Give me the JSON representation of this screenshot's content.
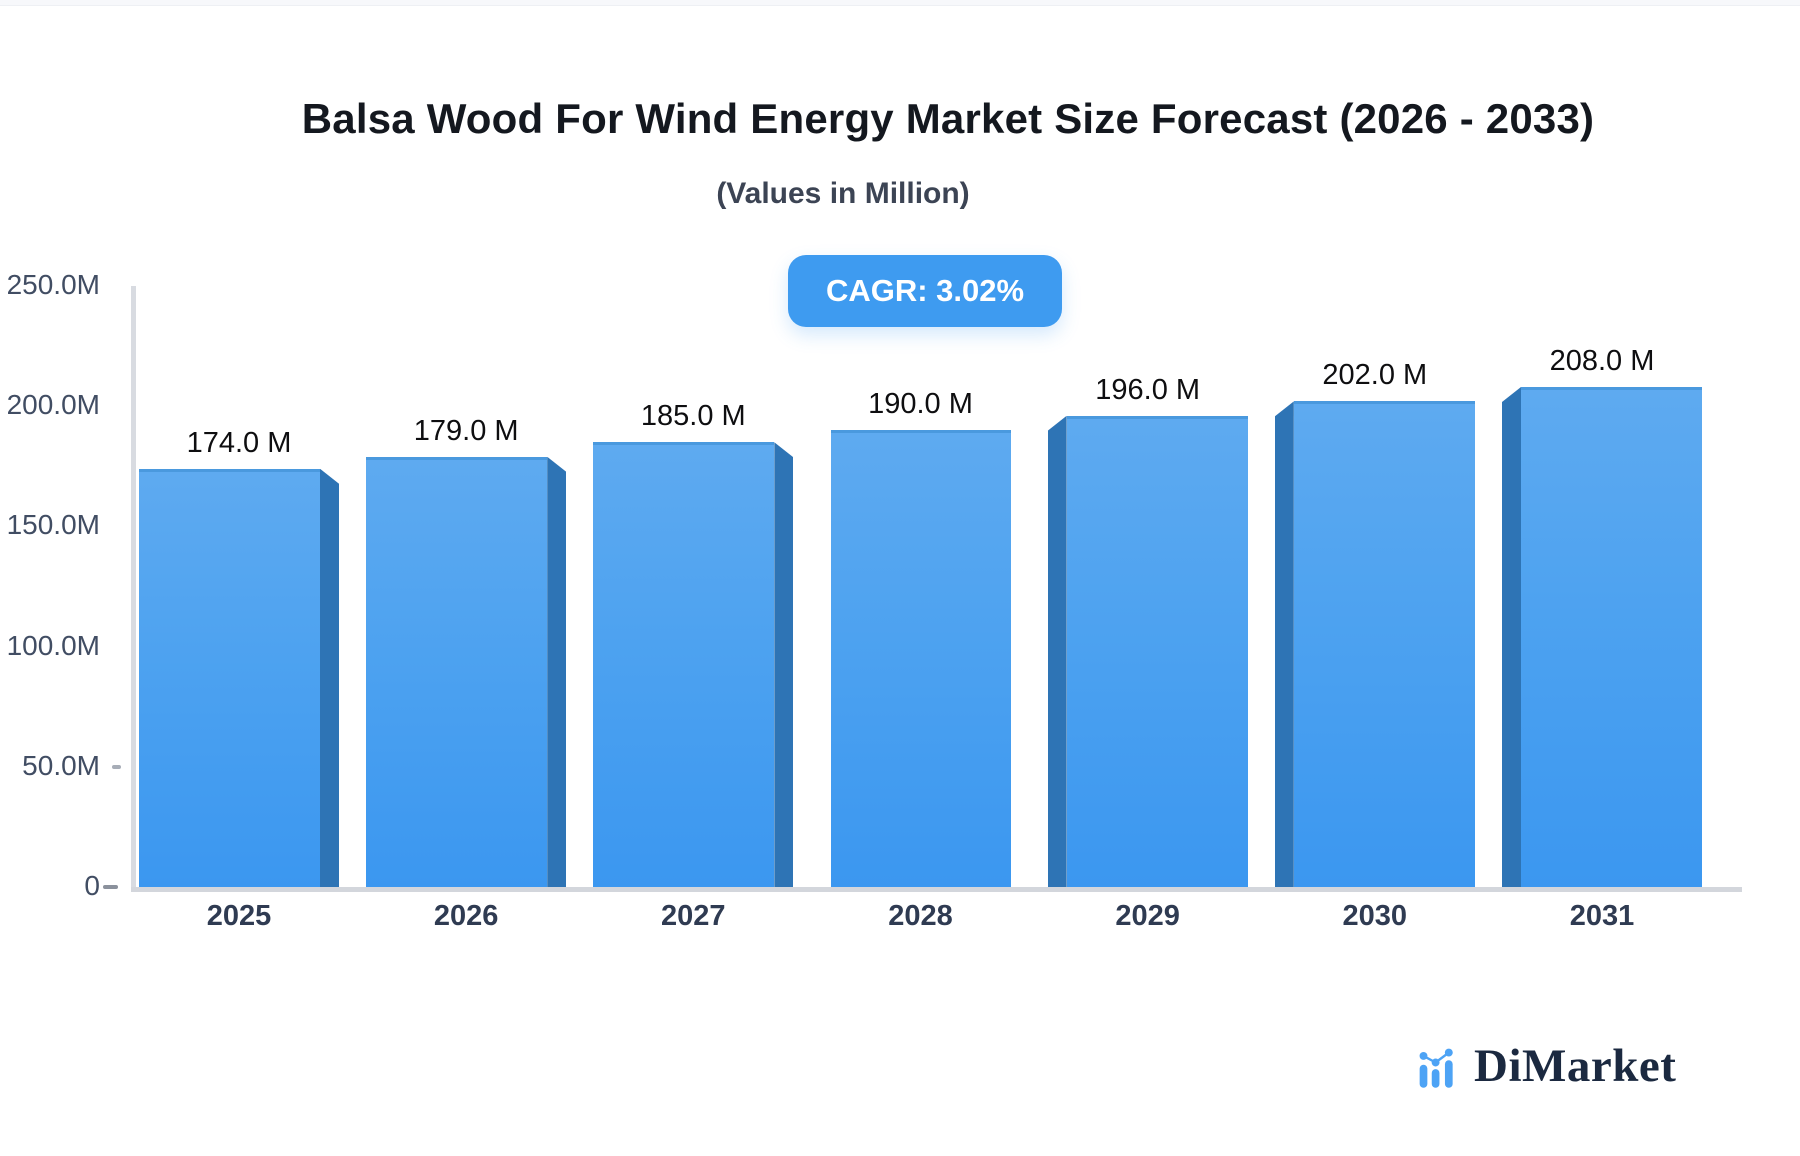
{
  "header": {
    "title": "Balsa Wood For Wind Energy Market Size Forecast (2026 - 2033)",
    "subtitle": "(Values in Million)"
  },
  "badge": {
    "label": "CAGR: 3.02%",
    "bg_color": "#3e9bf0",
    "text_color": "#ffffff"
  },
  "chart_data": {
    "type": "bar",
    "title": "Balsa Wood For Wind Energy Market Size Forecast (2026 - 2033)",
    "subtitle": "(Values in Million)",
    "unit": "Million",
    "categories": [
      "2025",
      "2026",
      "2027",
      "2028",
      "2029",
      "2030",
      "2031"
    ],
    "values": [
      174,
      179,
      185,
      190,
      196,
      202,
      208
    ],
    "value_labels": [
      "174.0 M",
      "179.0 M",
      "185.0 M",
      "190.0 M",
      "196.0 M",
      "202.0 M",
      "208.0 M"
    ],
    "ylim": [
      0,
      250
    ],
    "ytick_labels": [
      "250.0M",
      "200.0M",
      "150.0M",
      "100.0M",
      "50.0M",
      "0"
    ],
    "ytick_values": [
      250,
      200,
      150,
      100,
      50,
      0
    ],
    "grid": false,
    "legend": false,
    "bar_color_top": "#5eaaf0",
    "bar_color_bottom": "#3b97f0",
    "bar_side_color": "#2e74b5",
    "axis_color": "#d8dbe1"
  },
  "logo": {
    "text": "DiMarket",
    "icon": "bar-chart-trend-logo-icon",
    "icon_color": "#4da3f5"
  }
}
